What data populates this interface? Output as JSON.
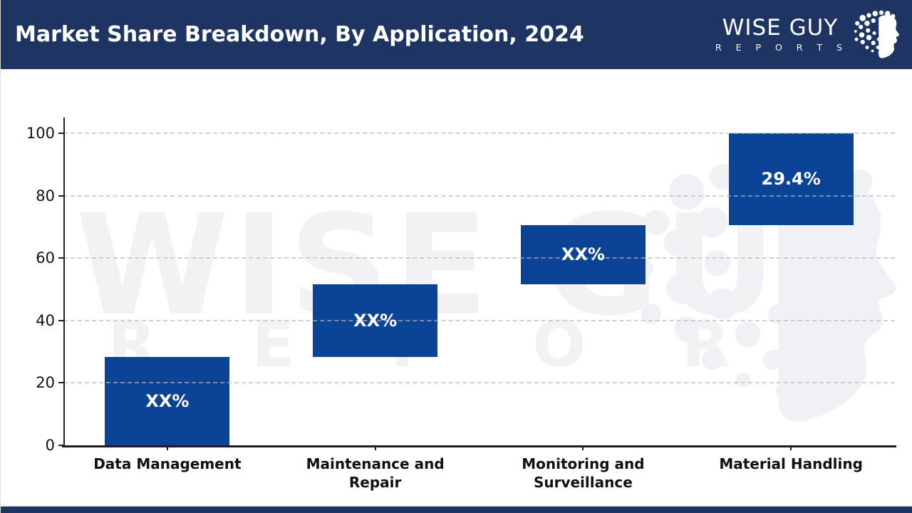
{
  "header": {
    "title": "Market Share Breakdown, By Application, 2024"
  },
  "logo": {
    "line1": "WISE GUY",
    "line2": "R E P O R T S"
  },
  "watermark": {
    "line1": "WISE GUY",
    "line2": "R E P O R T S"
  },
  "colors": {
    "header_bg": "#1e3462",
    "footer_bg": "#1e3462",
    "bar": "#0b4397",
    "bar_label": "#ffffff",
    "axis": "#1f1f1f",
    "watermark": "#f2f2f5"
  },
  "chart_data": {
    "type": "bar",
    "subtype": "waterfall",
    "title": "Market Share Breakdown, By Application, 2024",
    "xlabel": "",
    "ylabel": "",
    "ylim": [
      0,
      100
    ],
    "yticks": [
      0,
      20,
      40,
      60,
      80,
      100
    ],
    "grid": "horizontal-dashed, drawn above bars",
    "legend": "none",
    "categories": [
      "Data Management",
      "Maintenance and Repair",
      "Monitoring and Surveillance",
      "Material Handling"
    ],
    "segments": [
      {
        "category": "Data Management",
        "start": 0,
        "end": 28.2,
        "value": 28.2,
        "label": "XX%"
      },
      {
        "category": "Maintenance and Repair",
        "start": 28.2,
        "end": 51.7,
        "value": 23.5,
        "label": "XX%"
      },
      {
        "category": "Monitoring and Surveillance",
        "start": 51.7,
        "end": 70.6,
        "value": 18.9,
        "label": "XX%"
      },
      {
        "category": "Material Handling",
        "start": 70.6,
        "end": 100,
        "value": 29.4,
        "label": "29.4%"
      }
    ],
    "total": 100
  }
}
